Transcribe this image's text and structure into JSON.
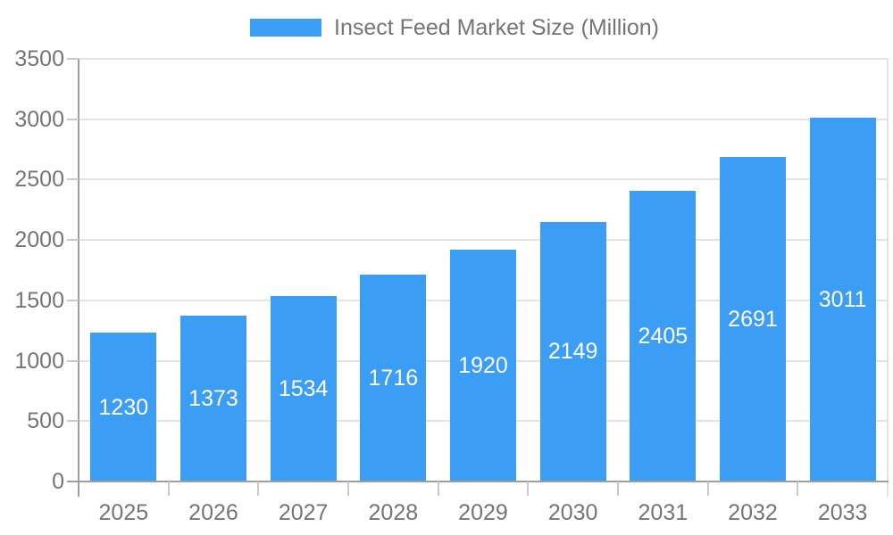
{
  "chart_data": {
    "type": "bar",
    "title": "Insect Feed Market Size (Million)",
    "categories": [
      "2025",
      "2026",
      "2027",
      "2028",
      "2029",
      "2030",
      "2031",
      "2032",
      "2033"
    ],
    "values": [
      1230,
      1373,
      1534,
      1716,
      1920,
      2149,
      2405,
      2691,
      3011
    ],
    "xlabel": "",
    "ylabel": "",
    "ylim": [
      0,
      3500
    ],
    "yticks": [
      0,
      500,
      1000,
      1500,
      2000,
      2500,
      3000,
      3500
    ],
    "grid": true,
    "legend_position": "top-center",
    "bar_value_labels_visible": true,
    "colors": {
      "bar": "#3b9df4",
      "bar_label_text": "#ffffff",
      "axis_line": "#9e9e9e",
      "tick_line": "#c9c9c9",
      "grid_line": "#e3e3e3",
      "text": "#757575",
      "background": "#ffffff"
    }
  }
}
